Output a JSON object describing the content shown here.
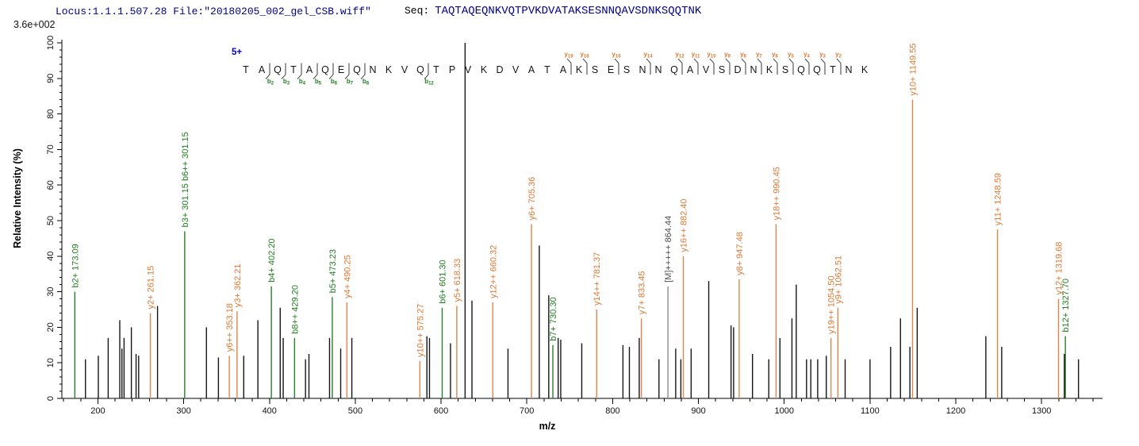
{
  "header": {
    "locus_file": "Locus:1.1.1.507.28 File:\"20180205_002_gel_CSB.wiff\"",
    "seq_label": "Seq:",
    "sequence": "TAQTAQEQNKVQTPVKDVATAKSESNNQAVSDNKSQQTNK"
  },
  "chart_data": {
    "type": "bar",
    "subtype": "ms2-peptide-fragment-spectrum",
    "title": "",
    "xlabel": "m/z",
    "ylabel": "Relative  Intensity (%)",
    "scale_label": "3.6e+002",
    "xlim": [
      158,
      1371
    ],
    "ylim": [
      0,
      100
    ],
    "x_major_ticks": [
      200,
      300,
      400,
      500,
      600,
      700,
      800,
      900,
      1000,
      1100,
      1200,
      1300
    ],
    "x_minor_step": 20,
    "y_major_step": 10,
    "y_minor_step": 2,
    "grid": false,
    "legend": "none",
    "colors": {
      "peak": {
        "b": "#2B7F2B",
        "y": "#E0854A",
        "M": "#8C8C8C",
        "-": "#151515"
      },
      "label": {
        "b": "#1E7D1E",
        "y": "#DD7832",
        "M": "#4D4D4D"
      },
      "axis": "#000000",
      "header_navy": "#00008b",
      "charge_blue": "#0000cc",
      "sequence_letter": "#161616"
    },
    "fragment_map": {
      "charge_label": "5+",
      "residues": "TAQTAQEQNKVQTPVKDVATAKSESNNQAVSDNKSQQTNK",
      "b_cuts": [
        {
          "after": 2,
          "ion": "b2"
        },
        {
          "after": 3,
          "ion": "b3"
        },
        {
          "after": 4,
          "ion": "b4"
        },
        {
          "after": 5,
          "ion": "b5"
        },
        {
          "after": 6,
          "ion": "b6"
        },
        {
          "after": 7,
          "ion": "b7"
        },
        {
          "after": 8,
          "ion": "b8"
        },
        {
          "after": 12,
          "ion": "b12"
        }
      ],
      "y_cuts": [
        {
          "after": 21,
          "ion": "y19"
        },
        {
          "after": 22,
          "ion": "y18"
        },
        {
          "after": 24,
          "ion": "y16"
        },
        {
          "after": 26,
          "ion": "y14"
        },
        {
          "after": 28,
          "ion": "y12"
        },
        {
          "after": 29,
          "ion": "y11"
        },
        {
          "after": 30,
          "ion": "y10"
        },
        {
          "after": 31,
          "ion": "y9"
        },
        {
          "after": 32,
          "ion": "y8"
        },
        {
          "after": 33,
          "ion": "y7"
        },
        {
          "after": 34,
          "ion": "y6"
        },
        {
          "after": 35,
          "ion": "y5"
        },
        {
          "after": 36,
          "ion": "y4"
        },
        {
          "after": 37,
          "ion": "y3"
        },
        {
          "after": 38,
          "ion": "y2"
        }
      ]
    },
    "peaks": [
      {
        "mz": 173.09,
        "intensity": 30,
        "series": "b",
        "label": "b2+ 173.09"
      },
      {
        "mz": 185.5,
        "intensity": 11,
        "series": "-"
      },
      {
        "mz": 200.5,
        "intensity": 12,
        "series": "-"
      },
      {
        "mz": 212,
        "intensity": 17,
        "series": "-"
      },
      {
        "mz": 225.5,
        "intensity": 22,
        "series": "-"
      },
      {
        "mz": 228,
        "intensity": 14,
        "series": "-"
      },
      {
        "mz": 230.5,
        "intensity": 17,
        "series": "-"
      },
      {
        "mz": 239,
        "intensity": 20,
        "series": "-"
      },
      {
        "mz": 244.5,
        "intensity": 12.5,
        "series": "-"
      },
      {
        "mz": 247.5,
        "intensity": 12,
        "series": "-"
      },
      {
        "mz": 261.15,
        "intensity": 24,
        "series": "y",
        "label": "y2+ 261.15"
      },
      {
        "mz": 269.5,
        "intensity": 26,
        "series": "-"
      },
      {
        "mz": 301.15,
        "intensity": 47,
        "series": "b",
        "label": "b3+ 301.15  b6++ 301.15"
      },
      {
        "mz": 326.5,
        "intensity": 20,
        "series": "-"
      },
      {
        "mz": 340.5,
        "intensity": 11.5,
        "series": "-"
      },
      {
        "mz": 353.18,
        "intensity": 12,
        "series": "y",
        "label": "y6++ 353.18"
      },
      {
        "mz": 362.21,
        "intensity": 24.5,
        "series": "y",
        "label": "y3+ 362.21"
      },
      {
        "mz": 370,
        "intensity": 12,
        "series": "-"
      },
      {
        "mz": 386.5,
        "intensity": 22,
        "series": "-"
      },
      {
        "mz": 402.2,
        "intensity": 31.5,
        "series": "b",
        "label": "b4+ 402.20"
      },
      {
        "mz": 412.5,
        "intensity": 25.5,
        "series": "-"
      },
      {
        "mz": 416,
        "intensity": 17,
        "series": "-"
      },
      {
        "mz": 429.2,
        "intensity": 17,
        "series": "b",
        "label": "b8++ 429.20"
      },
      {
        "mz": 442,
        "intensity": 11,
        "series": "-"
      },
      {
        "mz": 446,
        "intensity": 12.5,
        "series": "-"
      },
      {
        "mz": 470,
        "intensity": 17,
        "series": "-"
      },
      {
        "mz": 473.23,
        "intensity": 28.5,
        "series": "b",
        "label": "b5+ 473.23"
      },
      {
        "mz": 483,
        "intensity": 14,
        "series": "-"
      },
      {
        "mz": 490.25,
        "intensity": 27,
        "series": "y",
        "label": "y4+ 490.25"
      },
      {
        "mz": 496,
        "intensity": 17,
        "series": "-"
      },
      {
        "mz": 575.27,
        "intensity": 10.5,
        "series": "y",
        "label": "y10++ 575.27"
      },
      {
        "mz": 583.5,
        "intensity": 17.5,
        "series": "-"
      },
      {
        "mz": 586.5,
        "intensity": 17,
        "series": "-"
      },
      {
        "mz": 601.3,
        "intensity": 25.5,
        "series": "b",
        "label": "b6+ 601.30"
      },
      {
        "mz": 611,
        "intensity": 15.5,
        "series": "-"
      },
      {
        "mz": 618.33,
        "intensity": 26,
        "series": "y",
        "label": "y5+ 618.33"
      },
      {
        "mz": 628,
        "intensity": 100,
        "series": "-"
      },
      {
        "mz": 636,
        "intensity": 27.5,
        "series": "-"
      },
      {
        "mz": 660.32,
        "intensity": 27,
        "series": "y",
        "label": "y12++ 660.32"
      },
      {
        "mz": 678,
        "intensity": 14,
        "series": "-"
      },
      {
        "mz": 705.36,
        "intensity": 49,
        "series": "y",
        "label": "y6+ 705.36"
      },
      {
        "mz": 714.5,
        "intensity": 43,
        "series": "-"
      },
      {
        "mz": 725.5,
        "intensity": 29,
        "series": "-"
      },
      {
        "mz": 730.3,
        "intensity": 15,
        "series": "b",
        "label": "b7+ 730.30"
      },
      {
        "mz": 736.5,
        "intensity": 17,
        "series": "-"
      },
      {
        "mz": 739.5,
        "intensity": 16.5,
        "series": "-"
      },
      {
        "mz": 764,
        "intensity": 15.5,
        "series": "-"
      },
      {
        "mz": 781.37,
        "intensity": 25,
        "series": "y",
        "label": "y14++ 781.37"
      },
      {
        "mz": 812,
        "intensity": 15,
        "series": "-"
      },
      {
        "mz": 819.5,
        "intensity": 14.5,
        "series": "-"
      },
      {
        "mz": 831,
        "intensity": 17,
        "series": "-"
      },
      {
        "mz": 833.45,
        "intensity": 22.5,
        "series": "y",
        "label": "y7+ 833.45"
      },
      {
        "mz": 854,
        "intensity": 11,
        "series": "-"
      },
      {
        "mz": 864.44,
        "intensity": 31.5,
        "series": "M",
        "label": "[M]+++++ 864.44"
      },
      {
        "mz": 873.5,
        "intensity": 14,
        "series": "-"
      },
      {
        "mz": 879.5,
        "intensity": 11,
        "series": "-"
      },
      {
        "mz": 882.4,
        "intensity": 40,
        "series": "y",
        "label": "y16++ 882.40"
      },
      {
        "mz": 891.5,
        "intensity": 14,
        "series": "-"
      },
      {
        "mz": 912,
        "intensity": 33,
        "series": "-"
      },
      {
        "mz": 938,
        "intensity": 20.5,
        "series": "-"
      },
      {
        "mz": 941,
        "intensity": 20,
        "series": "-"
      },
      {
        "mz": 947.48,
        "intensity": 33.5,
        "series": "y",
        "label": "y8+ 947.48"
      },
      {
        "mz": 963,
        "intensity": 12.5,
        "series": "-"
      },
      {
        "mz": 982,
        "intensity": 11,
        "series": "-"
      },
      {
        "mz": 990.45,
        "intensity": 49,
        "series": "y",
        "label": "y18++ 990.45"
      },
      {
        "mz": 995,
        "intensity": 17,
        "series": "-"
      },
      {
        "mz": 1009,
        "intensity": 22.5,
        "series": "-"
      },
      {
        "mz": 1014,
        "intensity": 32,
        "series": "-"
      },
      {
        "mz": 1026,
        "intensity": 11,
        "series": "-"
      },
      {
        "mz": 1031,
        "intensity": 11,
        "series": "-"
      },
      {
        "mz": 1039,
        "intensity": 11,
        "series": "-"
      },
      {
        "mz": 1049,
        "intensity": 12,
        "series": "-"
      },
      {
        "mz": 1054.5,
        "intensity": 17,
        "series": "y",
        "label": "y19++ 1054.50"
      },
      {
        "mz": 1062.51,
        "intensity": 25.5,
        "series": "y",
        "label": "y9+ 1062.51"
      },
      {
        "mz": 1071,
        "intensity": 11,
        "series": "-"
      },
      {
        "mz": 1100,
        "intensity": 11,
        "series": "-"
      },
      {
        "mz": 1124,
        "intensity": 14.5,
        "series": "-"
      },
      {
        "mz": 1135.5,
        "intensity": 22.5,
        "series": "-"
      },
      {
        "mz": 1146.5,
        "intensity": 14.5,
        "series": "-"
      },
      {
        "mz": 1149.55,
        "intensity": 84,
        "series": "y",
        "label": "y10+ 1149.55"
      },
      {
        "mz": 1155,
        "intensity": 25.5,
        "series": "-"
      },
      {
        "mz": 1235,
        "intensity": 17.5,
        "series": "-"
      },
      {
        "mz": 1248.59,
        "intensity": 47.5,
        "series": "y",
        "label": "y11+ 1248.59"
      },
      {
        "mz": 1253.5,
        "intensity": 14.5,
        "series": "-"
      },
      {
        "mz": 1319.68,
        "intensity": 28,
        "series": "y",
        "label": "y12+ 1319.68"
      },
      {
        "mz": 1326.5,
        "intensity": 12.5,
        "series": "-"
      },
      {
        "mz": 1327.7,
        "intensity": 17.5,
        "series": "b",
        "label": "b12+ 1327.70"
      },
      {
        "mz": 1343,
        "intensity": 11,
        "series": "-"
      }
    ]
  }
}
